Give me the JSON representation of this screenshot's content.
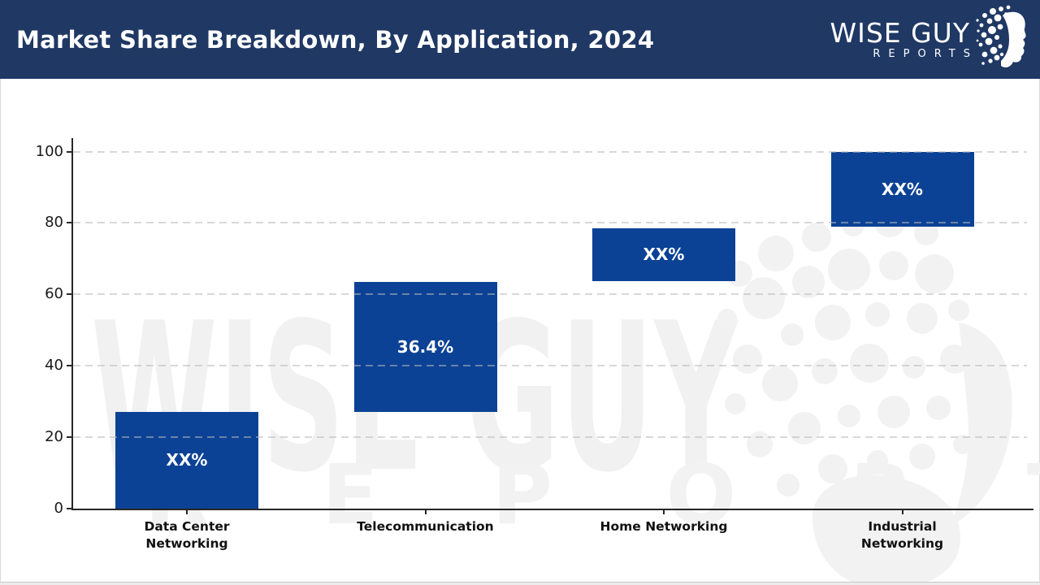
{
  "header": {
    "title": "Market Share Breakdown, By Application, 2024",
    "bg_color": "#1F3864",
    "logo": {
      "line1": "WISE GUY",
      "line2": "REPORTS"
    }
  },
  "watermark": {
    "line1": "WISE GUY",
    "line2": "R E P O R T S"
  },
  "colors": {
    "bar": "#0B4295",
    "header_navy": "#1F3864",
    "grid": "#DCDCDC",
    "axis": "#262626",
    "watermark_gray": "#F1F1F1"
  },
  "chart_data": {
    "type": "bar",
    "subtype": "waterfall",
    "title": "Market Share Breakdown, By Application, 2024",
    "xlabel": "",
    "ylabel": "",
    "ylim": [
      0,
      105
    ],
    "yticks": [
      0,
      20,
      40,
      60,
      80,
      100
    ],
    "grid": "horizontal-dashed, drawn over bars",
    "legend": "none",
    "categories": [
      "Data Center Networking",
      "Telecommunication",
      "Home Networking",
      "Industrial Networking"
    ],
    "category_lines": [
      [
        "Data Center",
        "Networking"
      ],
      [
        "Telecommunication"
      ],
      [
        "Home Networking"
      ],
      [
        "Industrial",
        "Networking"
      ]
    ],
    "segments": [
      {
        "category": "Data Center Networking",
        "base": 0,
        "top": 27.1,
        "value": 27.1,
        "label": "XX%"
      },
      {
        "category": "Telecommunication",
        "base": 27.1,
        "top": 63.5,
        "value": 36.4,
        "label": "36.4%"
      },
      {
        "category": "Home Networking",
        "base": 63.8,
        "top": 78.6,
        "value": 14.8,
        "label": "XX%"
      },
      {
        "category": "Industrial Networking",
        "base": 79.0,
        "top": 100.0,
        "value": 21.0,
        "label": "XX%"
      }
    ]
  }
}
